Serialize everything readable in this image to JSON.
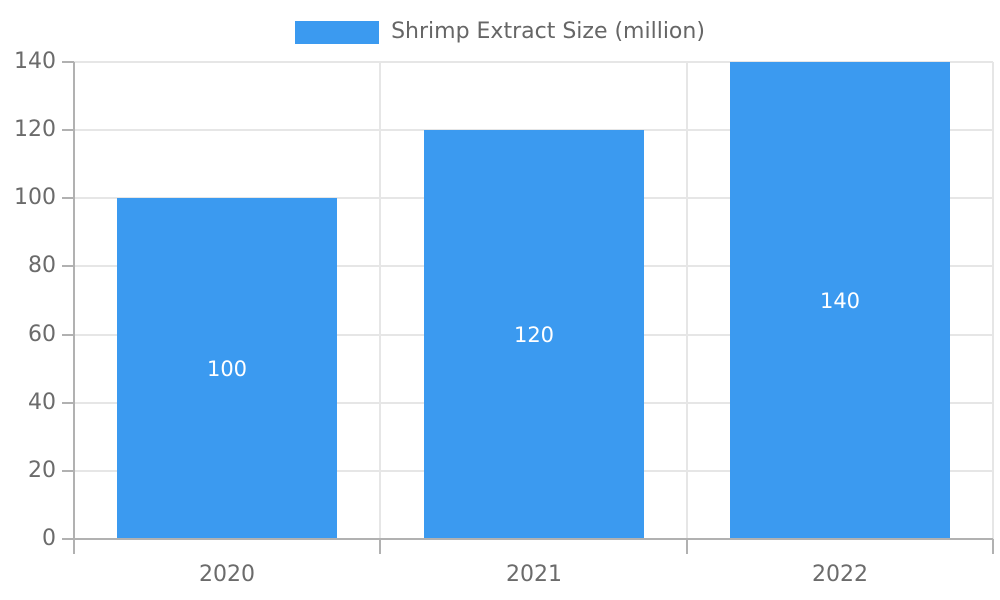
{
  "chart_data": {
    "type": "bar",
    "title": "Shrimp Extract Size (million)",
    "categories": [
      "2020",
      "2021",
      "2022"
    ],
    "series": [
      {
        "name": "Shrimp Extract Size (million)",
        "values": [
          100,
          120,
          140
        ]
      }
    ],
    "data_labels": [
      "100",
      "120",
      "140"
    ],
    "xlabel": "",
    "ylabel": "",
    "ylim": [
      0,
      140
    ],
    "yticks": [
      0,
      20,
      40,
      60,
      80,
      100,
      120,
      140
    ],
    "grid": true,
    "legend_position": "top",
    "colors": {
      "bar": "#3b9af0",
      "grid": "#e6e6e6",
      "axis": "#b1b1b1",
      "tick_mark": "#b1b1b1",
      "tick_label": "#6b6b6b",
      "legend_text": "#666666",
      "data_label": "#ffffff",
      "background": "#ffffff"
    }
  },
  "legend": {
    "label": "Shrimp Extract Size (million)"
  }
}
